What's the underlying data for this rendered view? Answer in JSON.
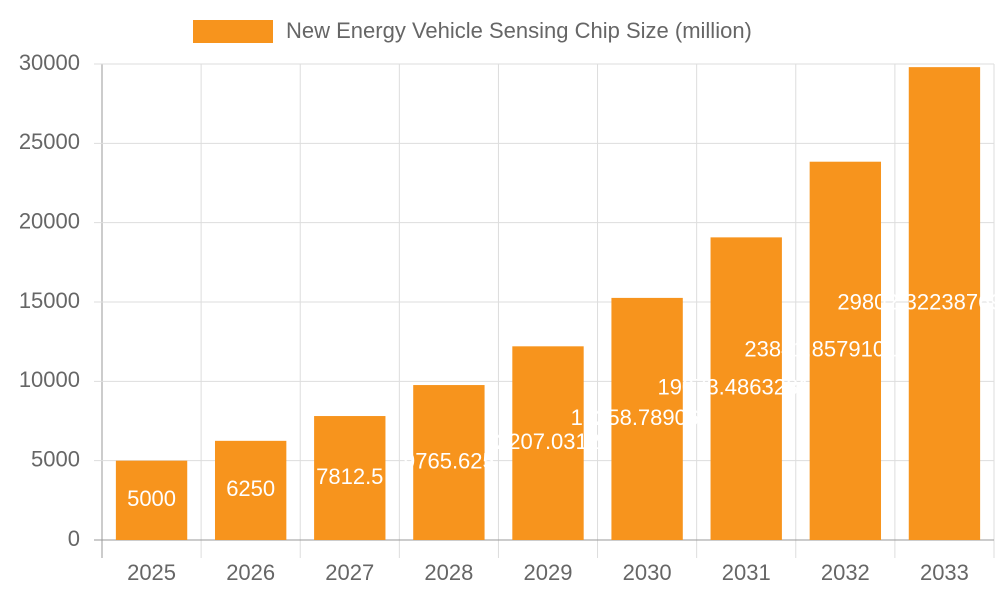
{
  "chart_data": {
    "type": "bar",
    "categories": [
      "2025",
      "2026",
      "2027",
      "2028",
      "2029",
      "2030",
      "2031",
      "2032",
      "2033"
    ],
    "series": [
      {
        "name": "New Energy Vehicle Sensing Chip Size (million)",
        "color": "#f7941d",
        "values": [
          5000,
          6250,
          7812.5,
          9765.625,
          12207.03125,
          15258.7890625,
          19073.486328125,
          23841.85791015625,
          29802.322387695312
        ]
      }
    ],
    "ylim": [
      0,
      30000
    ],
    "yticks": [
      0,
      5000,
      10000,
      15000,
      20000,
      25000,
      30000
    ],
    "grid": true
  }
}
